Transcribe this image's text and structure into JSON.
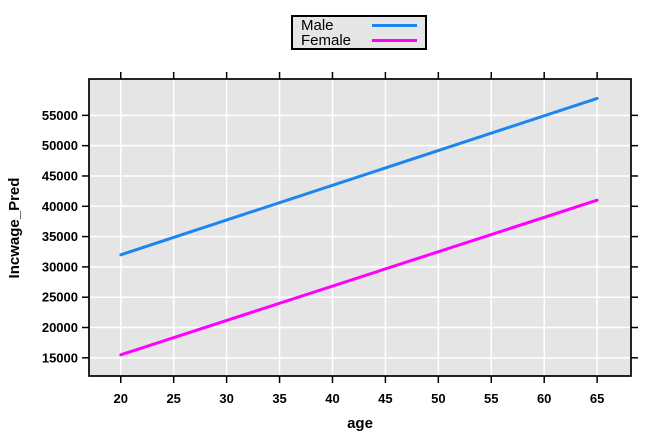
{
  "chart_data": {
    "type": "line",
    "title": "",
    "xlabel": "age",
    "ylabel": "Incwage_Pred",
    "x": [
      20,
      65
    ],
    "series": [
      {
        "name": "Male",
        "color": "#1C86EE",
        "values": [
          32000,
          57800
        ]
      },
      {
        "name": "Female",
        "color": "#FF00FF",
        "values": [
          15500,
          41000
        ]
      }
    ],
    "x_ticks": [
      20,
      25,
      30,
      35,
      40,
      45,
      50,
      55,
      60,
      65
    ],
    "y_ticks": [
      15000,
      20000,
      25000,
      30000,
      35000,
      40000,
      45000,
      50000,
      55000
    ],
    "xlim": [
      17,
      68.2
    ],
    "ylim": [
      12000,
      61000
    ],
    "grid": "on",
    "grid_color": "#ffffff",
    "panel_bg": "#e5e5e5",
    "axis_color": "#000000",
    "legend_position": "top-center"
  },
  "legend": {
    "fill": "#e6e6e6",
    "border": "#000000",
    "entries": [
      {
        "label": "Male",
        "color": "#1C86EE"
      },
      {
        "label": "Female",
        "color": "#FF00FF"
      }
    ]
  }
}
